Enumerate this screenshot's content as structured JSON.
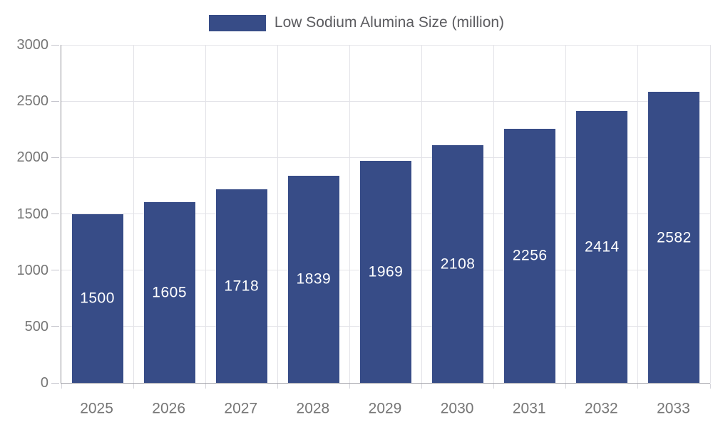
{
  "legend": {
    "label": "Low Sodium Alumina Size (million)"
  },
  "chart_data": {
    "type": "bar",
    "title": "",
    "categories": [
      "2025",
      "2026",
      "2027",
      "2028",
      "2029",
      "2030",
      "2031",
      "2032",
      "2033"
    ],
    "series": [
      {
        "name": "Low Sodium Alumina Size (million)",
        "values": [
          1500,
          1605,
          1718,
          1839,
          1969,
          2108,
          2256,
          2414,
          2582
        ]
      }
    ],
    "bar_value_labels": [
      "1500",
      "1605",
      "1718",
      "1839",
      "1969",
      "2108",
      "2256",
      "2414",
      "2582"
    ],
    "xlabel": "",
    "ylabel": "",
    "ylim": [
      0,
      3000
    ],
    "yticks": [
      0,
      500,
      1000,
      1500,
      2000,
      2500,
      3000
    ],
    "ytick_labels": [
      "0",
      "500",
      "1000",
      "1500",
      "2000",
      "2500",
      "3000"
    ],
    "grid": true,
    "legend_position": "top-center",
    "colors": {
      "bar": "#374c87",
      "grid": "#e3e3e8",
      "axis_line": "#8d8d94",
      "x_axis_line": "#a6a6ad",
      "axis_label": "#767676",
      "bar_label": "#ffffff",
      "legend_text": "#5c5c60"
    }
  }
}
